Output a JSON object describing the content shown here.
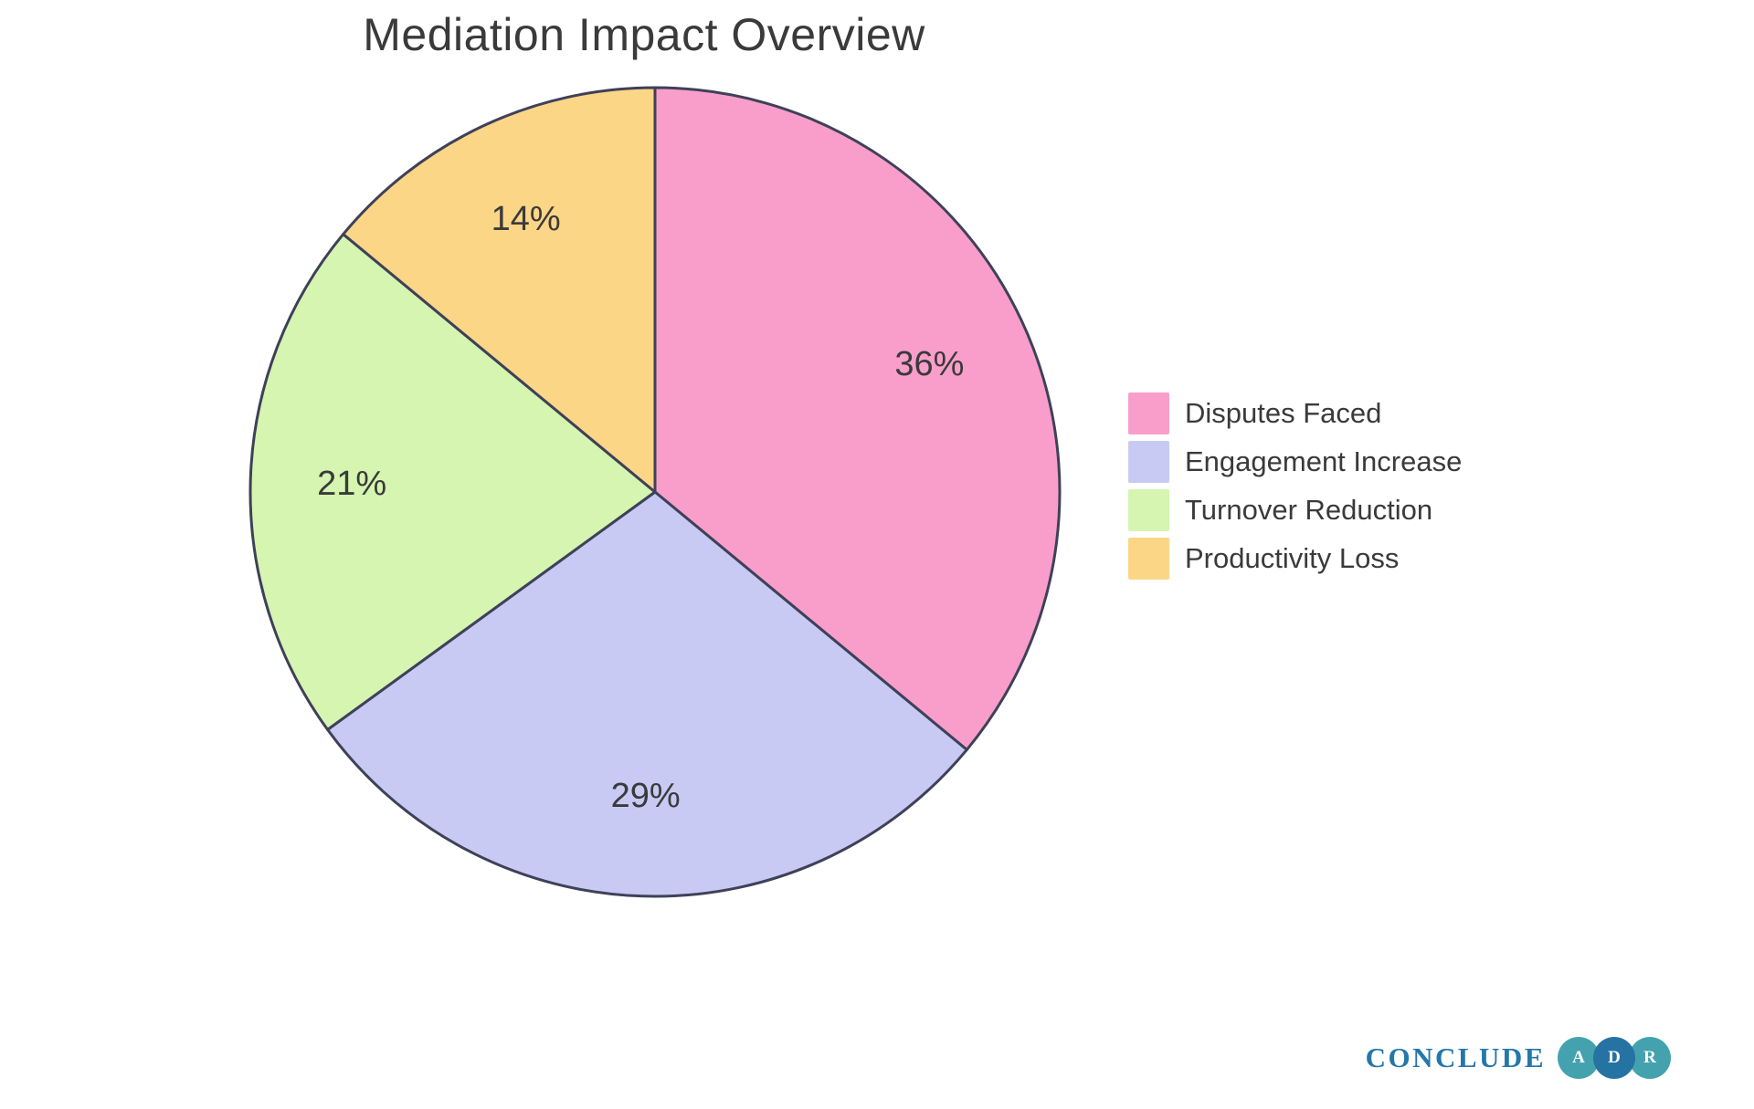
{
  "chart_data": {
    "type": "pie",
    "title": "Mediation Impact Overview",
    "start_angle_deg": 0,
    "direction": "clockwise",
    "legend_position": "right",
    "stroke_color": "#3E4158",
    "label_color": "#3A3A3A",
    "slices": [
      {
        "label": "Disputes Faced",
        "value": 36,
        "pct_label": "36%",
        "color": "#F99ECB"
      },
      {
        "label": "Engagement Increase",
        "value": 29,
        "pct_label": "29%",
        "color": "#C8CAF4"
      },
      {
        "label": "Turnover Reduction",
        "value": 21,
        "pct_label": "21%",
        "color": "#D5F5B0"
      },
      {
        "label": "Productivity Loss",
        "value": 14,
        "pct_label": "14%",
        "color": "#FCD687"
      }
    ]
  },
  "logo": {
    "wordmark": "CONCLUDE",
    "wordmark_color": "#2478A9",
    "badges": [
      {
        "letter": "A",
        "color": "#44A2AF"
      },
      {
        "letter": "D",
        "color": "#2473A3"
      },
      {
        "letter": "R",
        "color": "#44A2AF"
      }
    ]
  }
}
